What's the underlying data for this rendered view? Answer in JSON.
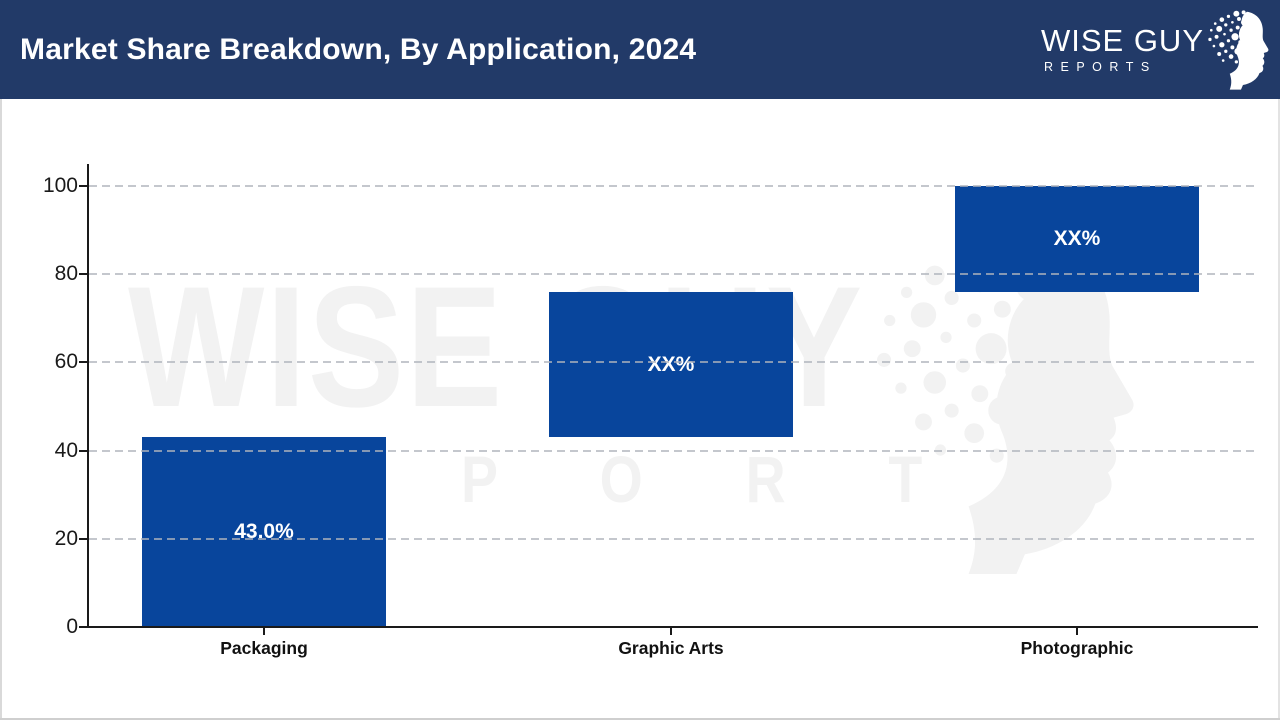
{
  "page": {
    "background": "#ffffff",
    "edge_line_color": "#cfcfcf"
  },
  "header": {
    "background": "#223a68",
    "title": "Market Share Breakdown, By Application, 2024",
    "logo": {
      "line1": "WISE GUY",
      "line2": "REPORTS",
      "face_icon": "dotted-head-profile",
      "color": "#ffffff"
    }
  },
  "watermark": {
    "line1": "WISE GUY",
    "line2": "R E P O R T S",
    "face_icon": "dotted-head-profile",
    "color": "#f2f2f2"
  },
  "chart_data": {
    "type": "bar",
    "subtype": "stepped-breakdown: each bar floats from the previous cumulative total",
    "title": "Market Share Breakdown, By Application, 2024",
    "categories": [
      "Packaging",
      "Graphic Arts",
      "Photographic"
    ],
    "segments": [
      {
        "category": "Packaging",
        "start": 0,
        "end": 43,
        "label": "43.0%"
      },
      {
        "category": "Graphic Arts",
        "start": 43,
        "end": 76,
        "label": "XX%"
      },
      {
        "category": "Photographic",
        "start": 76,
        "end": 100,
        "label": "XX%"
      }
    ],
    "xlabel": "",
    "ylabel": "",
    "ylim": [
      0,
      100
    ],
    "yticks": [
      0,
      20,
      40,
      60,
      80,
      100
    ],
    "grid": "horizontal dashed",
    "legend": "none",
    "bar_color": "#08459c",
    "bar_label_color": "#ffffff",
    "axis_color": "#1a1a1a"
  }
}
